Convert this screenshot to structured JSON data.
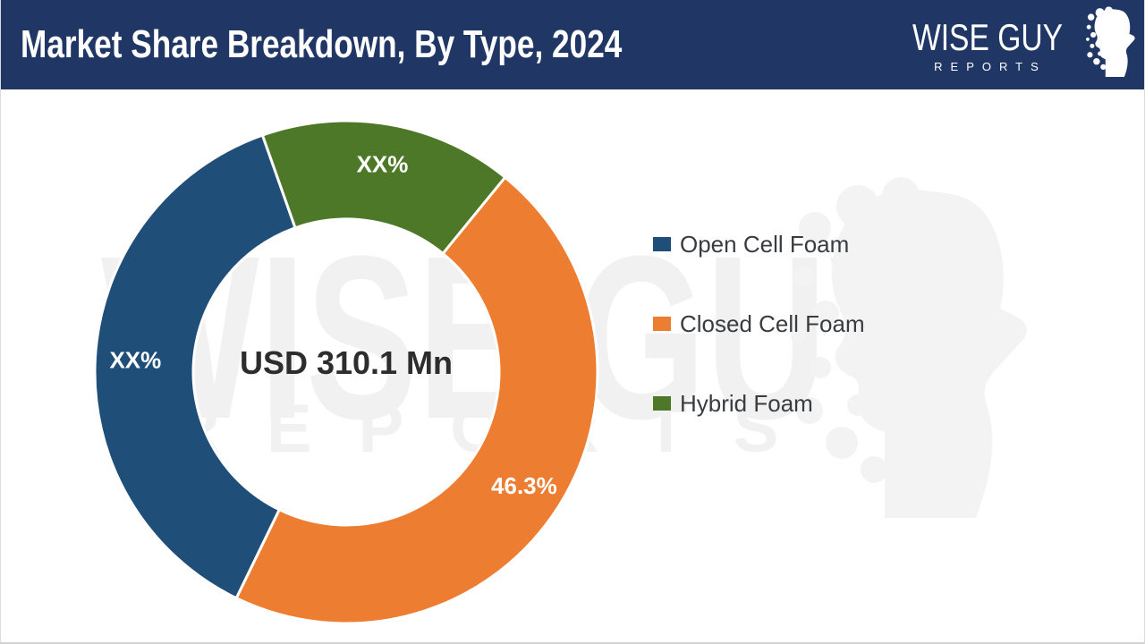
{
  "header": {
    "title": "Market Share Breakdown, By Type, 2024",
    "logo": {
      "line1": "WISE GUY",
      "line2": "REPORTS"
    }
  },
  "watermark": {
    "line1": "WISE GUY",
    "line2": "REPORTS"
  },
  "chart_data": {
    "type": "pie",
    "subtype": "donut",
    "title": "Market Share Breakdown, By Type, 2024",
    "center_label": "USD 310.1 Mn",
    "start_angle_deg": 205.9,
    "slices": [
      {
        "name": "Open Cell Foam",
        "value": 37.4,
        "display_label": "XX%",
        "color": "#1F4E79"
      },
      {
        "name": "Hybrid Foam",
        "value": 16.3,
        "display_label": "XX%",
        "color": "#4C7827"
      },
      {
        "name": "Closed Cell Foam",
        "value": 46.3,
        "display_label": "46.3%",
        "color": "#ED7D31"
      }
    ],
    "legend": [
      {
        "label": "Open Cell Foam",
        "color": "#1F4E79"
      },
      {
        "label": "Closed Cell Foam",
        "color": "#ED7D31"
      },
      {
        "label": "Hybrid Foam",
        "color": "#4C7827"
      }
    ]
  },
  "colors": {
    "header_bg": "#203766",
    "accent_blue": "#1F4E79",
    "accent_orange": "#ED7D31",
    "accent_green": "#4C7827",
    "watermark_gray": "#f1f1f1"
  }
}
